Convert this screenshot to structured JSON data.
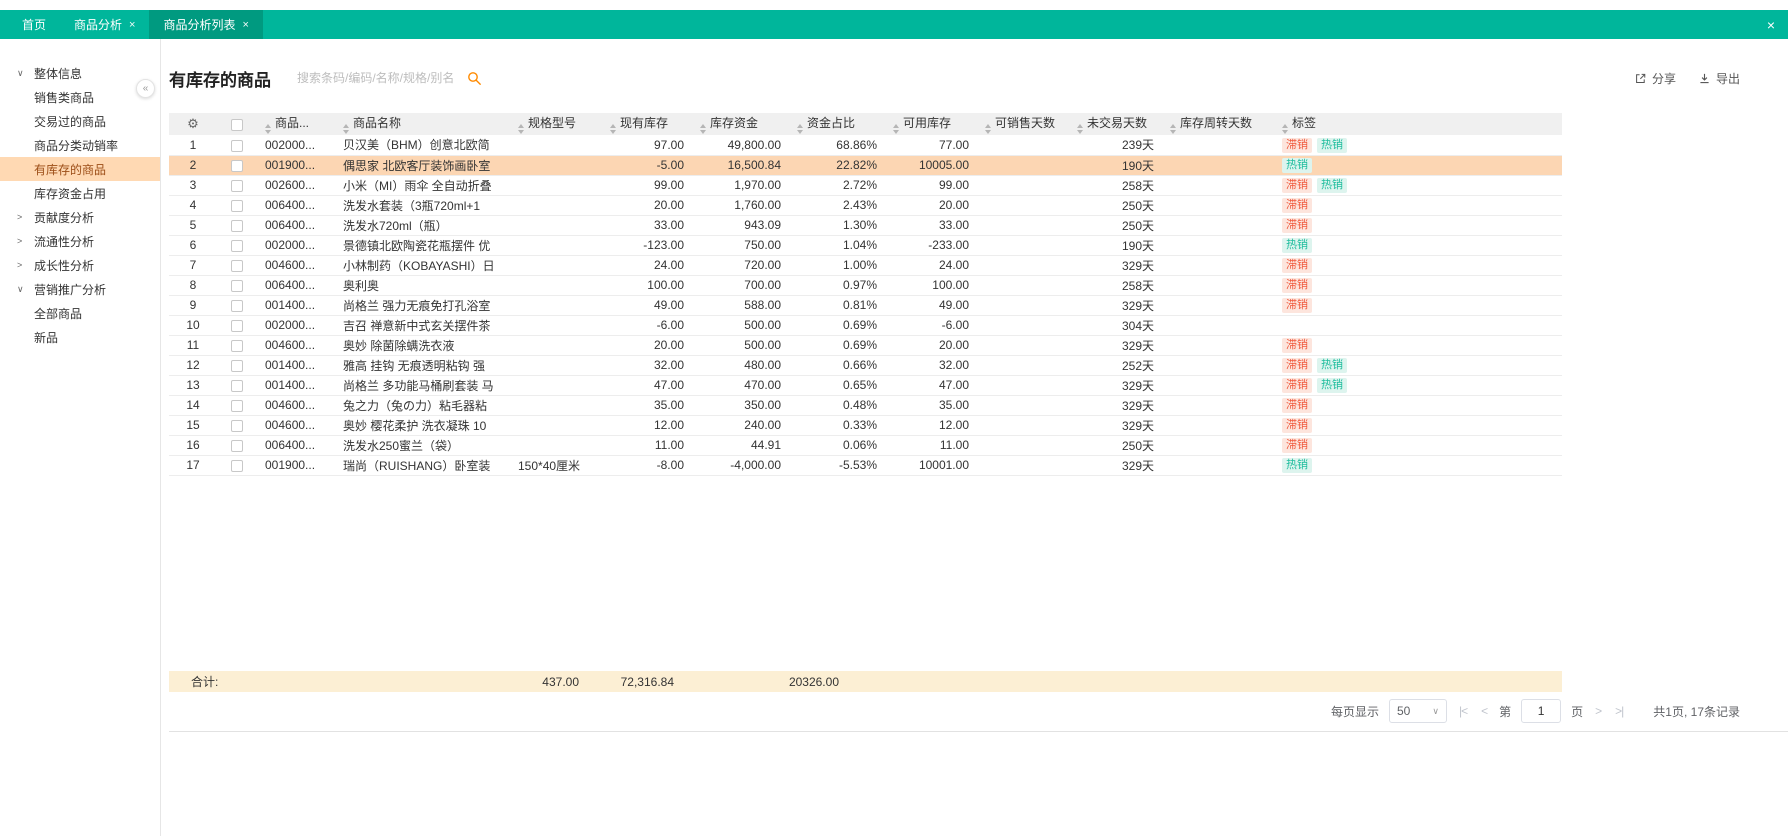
{
  "topbar": {
    "tabs": [
      {
        "label": "首页",
        "closable": false,
        "active": false
      },
      {
        "label": "商品分析",
        "closable": true,
        "active": false
      },
      {
        "label": "商品分析列表",
        "closable": true,
        "active": true
      }
    ],
    "close_all_icon": "×"
  },
  "sidebar": {
    "collapse_icon": "«",
    "groups": [
      {
        "label": "整体信息",
        "expanded": true,
        "children": [
          {
            "label": "销售类商品",
            "active": false
          },
          {
            "label": "交易过的商品",
            "active": false
          },
          {
            "label": "商品分类动销率",
            "active": false
          },
          {
            "label": "有库存的商品",
            "active": true
          },
          {
            "label": "库存资金占用",
            "active": false
          }
        ]
      },
      {
        "label": "贡献度分析",
        "expanded": false,
        "children": []
      },
      {
        "label": "流通性分析",
        "expanded": false,
        "children": []
      },
      {
        "label": "成长性分析",
        "expanded": false,
        "children": []
      },
      {
        "label": "营销推广分析",
        "expanded": true,
        "children": [
          {
            "label": "全部商品",
            "active": false
          },
          {
            "label": "新品",
            "active": false
          }
        ]
      }
    ]
  },
  "header": {
    "title": "有库存的商品",
    "search_placeholder": "搜索条码/编码/名称/规格/别名",
    "share_label": "分享",
    "export_label": "导出"
  },
  "table": {
    "columns": [
      "商品...",
      "商品名称",
      "规格型号",
      "现有库存",
      "库存资金",
      "资金占比",
      "可用库存",
      "可销售天数",
      "未交易天数",
      "库存周转天数",
      "标签"
    ],
    "rows": [
      {
        "num": "1",
        "code": "002000...",
        "name": "贝汉美（BHM）创意北欧简",
        "spec": "",
        "stock": "97.00",
        "fund": "49,800.00",
        "ratio": "68.86%",
        "avail": "77.00",
        "sell_days": "",
        "no_trade": "239天",
        "turnover": "",
        "tags": [
          "滞销",
          "热销"
        ],
        "selected": false
      },
      {
        "num": "2",
        "code": "001900...",
        "name": "偶思家 北欧客厅装饰画卧室",
        "spec": "",
        "stock": "-5.00",
        "fund": "16,500.84",
        "ratio": "22.82%",
        "avail": "10005.00",
        "sell_days": "",
        "no_trade": "190天",
        "turnover": "",
        "tags": [
          "热销"
        ],
        "selected": true
      },
      {
        "num": "3",
        "code": "002600...",
        "name": "小米（MI）雨伞 全自动折叠",
        "spec": "",
        "stock": "99.00",
        "fund": "1,970.00",
        "ratio": "2.72%",
        "avail": "99.00",
        "sell_days": "",
        "no_trade": "258天",
        "turnover": "",
        "tags": [
          "滞销",
          "热销"
        ],
        "selected": false
      },
      {
        "num": "4",
        "code": "006400...",
        "name": "洗发水套装（3瓶720ml+1",
        "spec": "",
        "stock": "20.00",
        "fund": "1,760.00",
        "ratio": "2.43%",
        "avail": "20.00",
        "sell_days": "",
        "no_trade": "250天",
        "turnover": "",
        "tags": [
          "滞销"
        ],
        "selected": false
      },
      {
        "num": "5",
        "code": "006400...",
        "name": "洗发水720ml（瓶）",
        "spec": "",
        "stock": "33.00",
        "fund": "943.09",
        "ratio": "1.30%",
        "avail": "33.00",
        "sell_days": "",
        "no_trade": "250天",
        "turnover": "",
        "tags": [
          "滞销"
        ],
        "selected": false
      },
      {
        "num": "6",
        "code": "002000...",
        "name": "景德镇北欧陶瓷花瓶摆件 优",
        "spec": "",
        "stock": "-123.00",
        "fund": "750.00",
        "ratio": "1.04%",
        "avail": "-233.00",
        "sell_days": "",
        "no_trade": "190天",
        "turnover": "",
        "tags": [
          "热销"
        ],
        "selected": false
      },
      {
        "num": "7",
        "code": "004600...",
        "name": "小林制药（KOBAYASHI）日",
        "spec": "",
        "stock": "24.00",
        "fund": "720.00",
        "ratio": "1.00%",
        "avail": "24.00",
        "sell_days": "",
        "no_trade": "329天",
        "turnover": "",
        "tags": [
          "滞销"
        ],
        "selected": false
      },
      {
        "num": "8",
        "code": "006400...",
        "name": "奥利奥",
        "spec": "",
        "stock": "100.00",
        "fund": "700.00",
        "ratio": "0.97%",
        "avail": "100.00",
        "sell_days": "",
        "no_trade": "258天",
        "turnover": "",
        "tags": [
          "滞销"
        ],
        "selected": false
      },
      {
        "num": "9",
        "code": "001400...",
        "name": "尚格兰 强力无痕免打孔浴室",
        "spec": "",
        "stock": "49.00",
        "fund": "588.00",
        "ratio": "0.81%",
        "avail": "49.00",
        "sell_days": "",
        "no_trade": "329天",
        "turnover": "",
        "tags": [
          "滞销"
        ],
        "selected": false
      },
      {
        "num": "10",
        "code": "002000...",
        "name": "吉召 禅意新中式玄关摆件茶",
        "spec": "",
        "stock": "-6.00",
        "fund": "500.00",
        "ratio": "0.69%",
        "avail": "-6.00",
        "sell_days": "",
        "no_trade": "304天",
        "turnover": "",
        "tags": [],
        "selected": false
      },
      {
        "num": "11",
        "code": "004600...",
        "name": "奥妙 除菌除螨洗衣液",
        "spec": "",
        "stock": "20.00",
        "fund": "500.00",
        "ratio": "0.69%",
        "avail": "20.00",
        "sell_days": "",
        "no_trade": "329天",
        "turnover": "",
        "tags": [
          "滞销"
        ],
        "selected": false
      },
      {
        "num": "12",
        "code": "001400...",
        "name": "雅高 挂钩 无痕透明粘钩 强",
        "spec": "",
        "stock": "32.00",
        "fund": "480.00",
        "ratio": "0.66%",
        "avail": "32.00",
        "sell_days": "",
        "no_trade": "252天",
        "turnover": "",
        "tags": [
          "滞销",
          "热销"
        ],
        "selected": false
      },
      {
        "num": "13",
        "code": "001400...",
        "name": "尚格兰 多功能马桶刷套装 马",
        "spec": "",
        "stock": "47.00",
        "fund": "470.00",
        "ratio": "0.65%",
        "avail": "47.00",
        "sell_days": "",
        "no_trade": "329天",
        "turnover": "",
        "tags": [
          "滞销",
          "热销"
        ],
        "selected": false
      },
      {
        "num": "14",
        "code": "004600...",
        "name": "兔之力（兔の力）粘毛器粘",
        "spec": "",
        "stock": "35.00",
        "fund": "350.00",
        "ratio": "0.48%",
        "avail": "35.00",
        "sell_days": "",
        "no_trade": "329天",
        "turnover": "",
        "tags": [
          "滞销"
        ],
        "selected": false
      },
      {
        "num": "15",
        "code": "004600...",
        "name": "奥妙 樱花柔护 洗衣凝珠 10",
        "spec": "",
        "stock": "12.00",
        "fund": "240.00",
        "ratio": "0.33%",
        "avail": "12.00",
        "sell_days": "",
        "no_trade": "329天",
        "turnover": "",
        "tags": [
          "滞销"
        ],
        "selected": false
      },
      {
        "num": "16",
        "code": "006400...",
        "name": "洗发水250蜜兰（袋）",
        "spec": "",
        "stock": "11.00",
        "fund": "44.91",
        "ratio": "0.06%",
        "avail": "11.00",
        "sell_days": "",
        "no_trade": "250天",
        "turnover": "",
        "tags": [
          "滞销"
        ],
        "selected": false
      },
      {
        "num": "17",
        "code": "001900...",
        "name": "瑞尚（RUISHANG）卧室装",
        "spec": "150*40厘米",
        "stock": "-8.00",
        "fund": "-4,000.00",
        "ratio": "-5.53%",
        "avail": "10001.00",
        "sell_days": "",
        "no_trade": "329天",
        "turnover": "",
        "tags": [
          "热销"
        ],
        "selected": false
      }
    ],
    "summary": {
      "label": "合计:",
      "stock": "437.00",
      "fund": "72,316.84",
      "avail": "20326.00"
    }
  },
  "tag_styles": {
    "滞销": {
      "color": "#f0583c",
      "bg": "#fde5dd"
    },
    "热销": {
      "color": "#1cbc9c",
      "bg": "#ddf4ee"
    }
  },
  "pagination": {
    "per_page_label": "每页显示",
    "page_size": "50",
    "first": "|<",
    "prev": "<",
    "page_prefix": "第",
    "page_value": "1",
    "page_suffix": "页",
    "next": ">",
    "last": ">|",
    "total_text": "共1页, 17条记录"
  },
  "colors": {
    "topbar": "#00b69b",
    "topbar_active": "#009a80",
    "sidebar_active_bg": "#ffd9b3",
    "selected_row_bg": "#fcd6b3",
    "summary_bg": "#fcefd4",
    "search_icon": "#ff8a00"
  }
}
